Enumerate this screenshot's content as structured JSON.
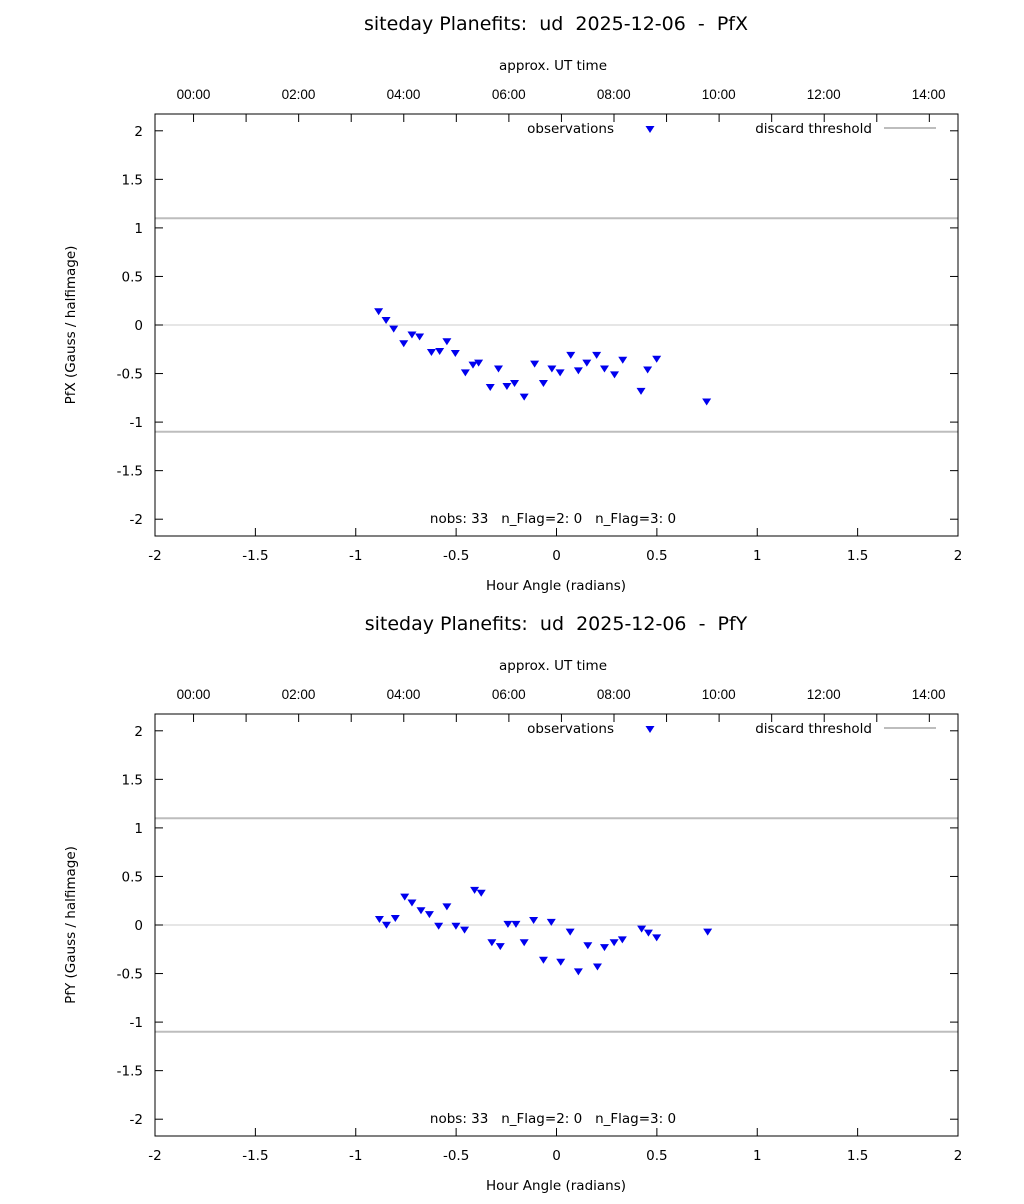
{
  "page": {
    "background": "#ffffff"
  },
  "colors": {
    "points": "#0000ee",
    "threshold_line": "#bdbdbd",
    "zero_line": "#cdcdcd",
    "axis": "#000000"
  },
  "chart_data": [
    {
      "type": "scatter",
      "title": "siteday Planefits:  ud  2025-12-06  -  PfX",
      "x2_label": "approx. UT time",
      "x2_tick_labels": [
        "00:00",
        "02:00",
        "04:00",
        "06:00",
        "08:00",
        "10:00",
        "12:00",
        "14:00"
      ],
      "x2_tick_positions": [
        -1.808,
        -1.285,
        -0.762,
        -0.238,
        0.285,
        0.808,
        1.331,
        1.854
      ],
      "x2_hour_tick_start": -1.808,
      "x2_hour_tick_step": 0.2618,
      "x2_hour_tick_count": 15,
      "xlabel": "Hour Angle (radians)",
      "ylabel": "PfX (Gauss / halfimage)",
      "x_tick_labels": [
        "-2",
        "-1.5",
        "-1",
        "-0.5",
        "0",
        "0.5",
        "1",
        "1.5",
        "2"
      ],
      "y_tick_labels": [
        "-2",
        "-1.5",
        "-1",
        "-0.5",
        "0",
        "0.5",
        "1",
        "1.5",
        "2"
      ],
      "xlim": [
        -2,
        2
      ],
      "ylim": [
        -2.17,
        2.17
      ],
      "grid": false,
      "discard_threshold": [
        1.1,
        -1.1
      ],
      "zero_line": 0,
      "legend": {
        "position": "top-inside",
        "observations_label": "observations",
        "threshold_label": "discard threshold"
      },
      "annotation": "nobs: 33   n_Flag=2: 0   n_Flag=3: 0",
      "series": [
        {
          "name": "observations",
          "marker": "triangle-down",
          "color": "#0000ee",
          "points": [
            [
              -0.886,
              0.14
            ],
            [
              -0.849,
              0.05
            ],
            [
              -0.811,
              -0.04
            ],
            [
              -0.761,
              -0.19
            ],
            [
              -0.72,
              -0.1
            ],
            [
              -0.682,
              -0.12
            ],
            [
              -0.623,
              -0.28
            ],
            [
              -0.582,
              -0.27
            ],
            [
              -0.546,
              -0.17
            ],
            [
              -0.504,
              -0.29
            ],
            [
              -0.454,
              -0.49
            ],
            [
              -0.416,
              -0.41
            ],
            [
              -0.388,
              -0.39
            ],
            [
              -0.33,
              -0.64
            ],
            [
              -0.289,
              -0.45
            ],
            [
              -0.247,
              -0.63
            ],
            [
              -0.209,
              -0.6
            ],
            [
              -0.161,
              -0.74
            ],
            [
              -0.109,
              -0.4
            ],
            [
              -0.065,
              -0.6
            ],
            [
              -0.023,
              -0.45
            ],
            [
              0.018,
              -0.49
            ],
            [
              0.071,
              -0.31
            ],
            [
              0.109,
              -0.47
            ],
            [
              0.151,
              -0.39
            ],
            [
              0.2,
              -0.31
            ],
            [
              0.239,
              -0.45
            ],
            [
              0.289,
              -0.51
            ],
            [
              0.33,
              -0.36
            ],
            [
              0.421,
              -0.68
            ],
            [
              0.454,
              -0.46
            ],
            [
              0.499,
              -0.35
            ],
            [
              0.748,
              -0.79
            ]
          ]
        }
      ]
    },
    {
      "type": "scatter",
      "title": "siteday Planefits:  ud  2025-12-06  -  PfY",
      "x2_label": "approx. UT time",
      "x2_tick_labels": [
        "00:00",
        "02:00",
        "04:00",
        "06:00",
        "08:00",
        "10:00",
        "12:00",
        "14:00"
      ],
      "x2_tick_positions": [
        -1.808,
        -1.285,
        -0.762,
        -0.238,
        0.285,
        0.808,
        1.331,
        1.854
      ],
      "x2_hour_tick_start": -1.808,
      "x2_hour_tick_step": 0.2618,
      "x2_hour_tick_count": 15,
      "xlabel": "Hour Angle (radians)",
      "ylabel": "PfY (Gauss / halfimage)",
      "x_tick_labels": [
        "-2",
        "-1.5",
        "-1",
        "-0.5",
        "0",
        "0.5",
        "1",
        "1.5",
        "2"
      ],
      "y_tick_labels": [
        "-2",
        "-1.5",
        "-1",
        "-0.5",
        "0",
        "0.5",
        "1",
        "1.5",
        "2"
      ],
      "xlim": [
        -2,
        2
      ],
      "ylim": [
        -2.17,
        2.17
      ],
      "grid": false,
      "discard_threshold": [
        1.1,
        -1.1
      ],
      "zero_line": 0,
      "legend": {
        "position": "top-inside",
        "observations_label": "observations",
        "threshold_label": "discard threshold"
      },
      "annotation": "nobs: 33   n_Flag=2: 0   n_Flag=3: 0",
      "series": [
        {
          "name": "observations",
          "marker": "triangle-down",
          "color": "#0000ee",
          "points": [
            [
              -0.882,
              0.06
            ],
            [
              -0.847,
              0.0
            ],
            [
              -0.803,
              0.07
            ],
            [
              -0.756,
              0.29
            ],
            [
              -0.72,
              0.23
            ],
            [
              -0.675,
              0.15
            ],
            [
              -0.633,
              0.11
            ],
            [
              -0.587,
              -0.01
            ],
            [
              -0.546,
              0.19
            ],
            [
              -0.501,
              -0.01
            ],
            [
              -0.458,
              -0.05
            ],
            [
              -0.408,
              0.36
            ],
            [
              -0.375,
              0.33
            ],
            [
              -0.322,
              -0.18
            ],
            [
              -0.28,
              -0.22
            ],
            [
              -0.242,
              0.01
            ],
            [
              -0.202,
              0.01
            ],
            [
              -0.161,
              -0.18
            ],
            [
              -0.114,
              0.05
            ],
            [
              -0.065,
              -0.36
            ],
            [
              -0.026,
              0.03
            ],
            [
              0.021,
              -0.38
            ],
            [
              0.068,
              -0.07
            ],
            [
              0.109,
              -0.48
            ],
            [
              0.156,
              -0.21
            ],
            [
              0.204,
              -0.43
            ],
            [
              0.239,
              -0.23
            ],
            [
              0.287,
              -0.18
            ],
            [
              0.328,
              -0.15
            ],
            [
              0.424,
              -0.04
            ],
            [
              0.458,
              -0.08
            ],
            [
              0.499,
              -0.13
            ],
            [
              0.753,
              -0.07
            ]
          ]
        }
      ]
    }
  ]
}
